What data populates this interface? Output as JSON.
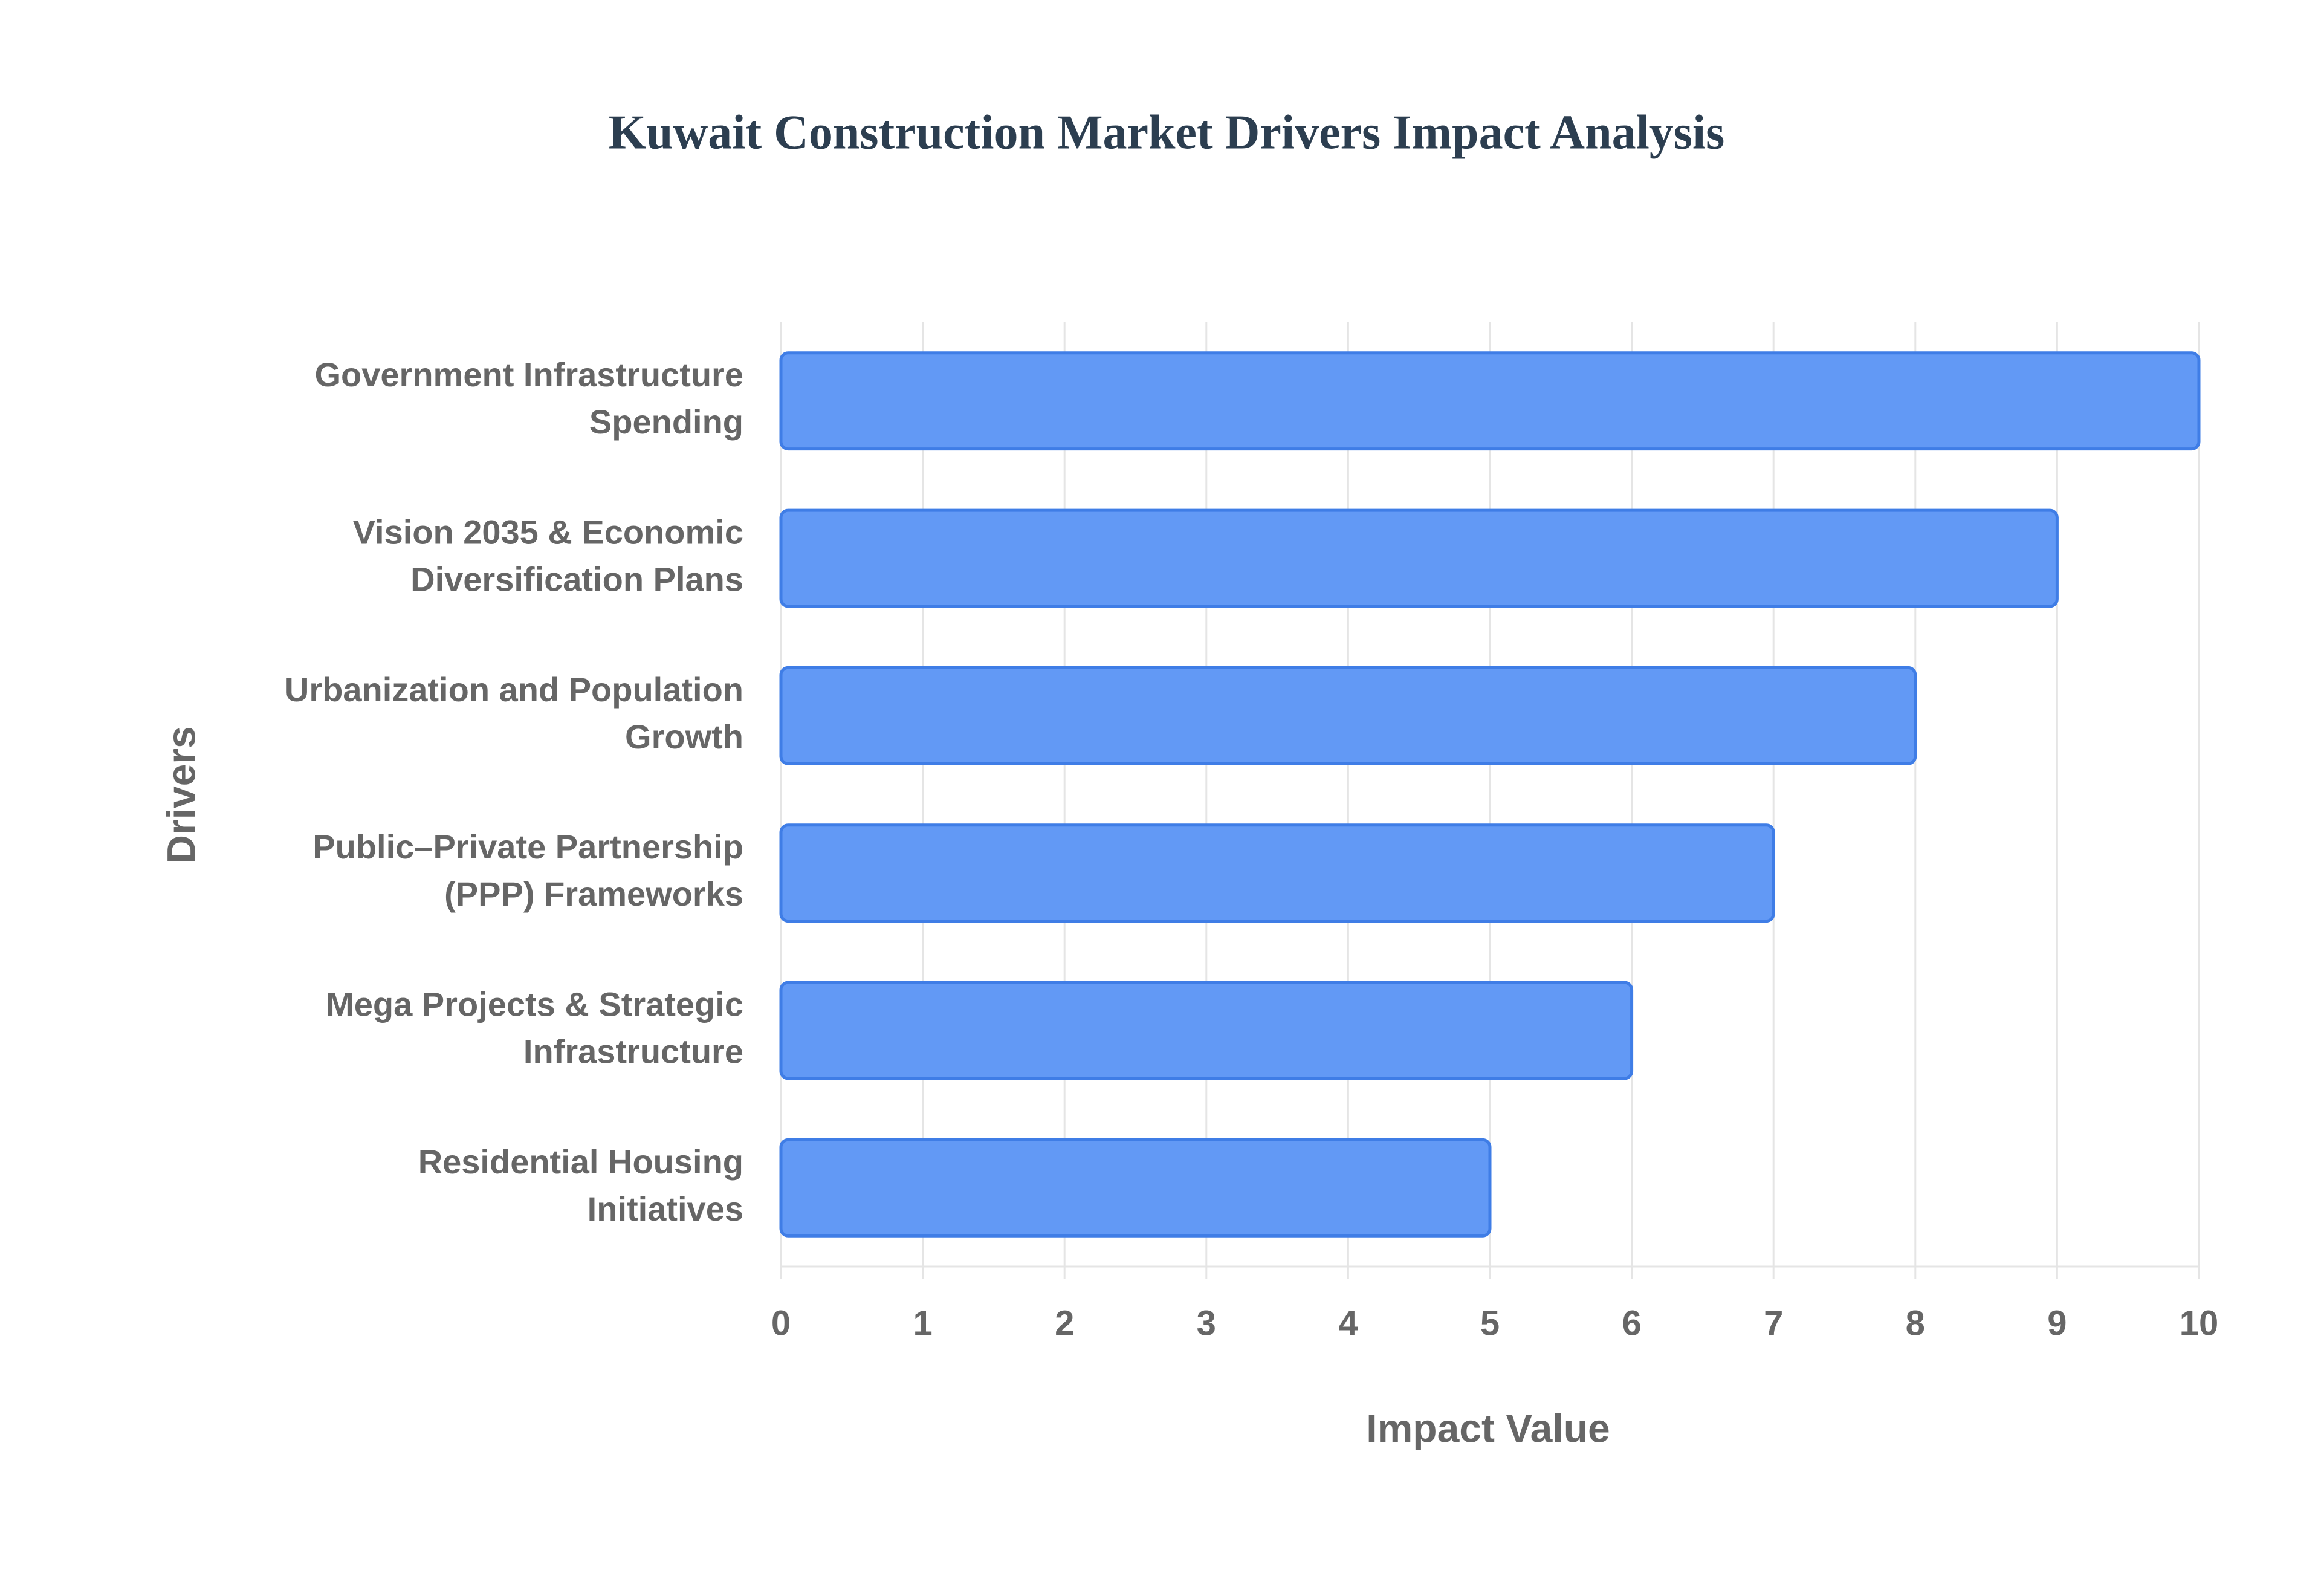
{
  "chart_data": {
    "type": "bar",
    "orientation": "horizontal",
    "title": "Kuwait Construction Market Drivers Impact Analysis",
    "x_label": "Impact Value",
    "y_label": "Drivers",
    "categories": [
      "Government Infrastructure Spending",
      "Vision 2035 & Economic Diversification Plans",
      "Urbanization and Population Growth",
      "Public–Private Partnership (PPP) Frameworks",
      "Mega Projects & Strategic Infrastructure",
      "Residential Housing Initiatives"
    ],
    "values": [
      10,
      9,
      8,
      7,
      6,
      5
    ],
    "color": "#6299f5",
    "border_color": "#3f7de6",
    "xlim": [
      0,
      10
    ],
    "xticks": [
      0,
      1,
      2,
      3,
      4,
      5,
      6,
      7,
      8,
      9,
      10
    ],
    "grid": true
  }
}
